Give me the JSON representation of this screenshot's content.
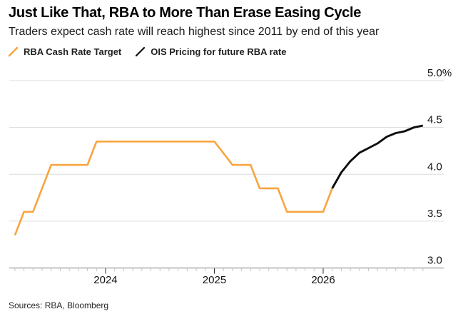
{
  "header": {
    "title": "Just Like That, RBA to More Than Erase Easing Cycle",
    "subtitle": "Traders expect cash rate will reach highest since 2011 by end of this year"
  },
  "legend": {
    "items": [
      {
        "label": "RBA Cash Rate Target",
        "color": "#F9A43F"
      },
      {
        "label": "OIS Pricing for future RBA rate",
        "color": "#0d0d0d"
      }
    ]
  },
  "footer": {
    "source": "Sources: RBA, Bloomberg"
  },
  "chart_data": {
    "type": "line",
    "title": "Just Like That, RBA to More Than Erase Easing Cycle",
    "subtitle": "Traders expect cash rate will reach highest since 2011 by end of this year",
    "grid": "horizontal",
    "legend_position": "top-left",
    "y_axis": {
      "min": 3.0,
      "max": 5.0,
      "unit": "%",
      "ticks": [
        {
          "value": 3.0,
          "label": "3.0"
        },
        {
          "value": 3.5,
          "label": "3.5"
        },
        {
          "value": 4.0,
          "label": "4.0"
        },
        {
          "value": 4.5,
          "label": "4.5"
        },
        {
          "value": 5.0,
          "label": "5.0%"
        }
      ]
    },
    "x_axis": {
      "domain": [
        2023.115,
        2027.108
      ],
      "minor_tick_months": {
        "first": {
          "year": 2023,
          "month": 3
        },
        "last": {
          "year": 2026,
          "month": 12
        }
      },
      "year_labels": [
        {
          "t": 2024,
          "label": "2024"
        },
        {
          "t": 2025,
          "label": "2025"
        },
        {
          "t": 2026,
          "label": "2026"
        }
      ]
    },
    "series": [
      {
        "name": "RBA Cash Rate Target",
        "color": "#F9A43F",
        "points": [
          [
            2023.1667,
            3.35
          ],
          [
            2023.25,
            3.6
          ],
          [
            2023.3333,
            3.6
          ],
          [
            2023.4167,
            3.85
          ],
          [
            2023.5,
            4.1
          ],
          [
            2023.8333,
            4.1
          ],
          [
            2023.9167,
            4.35
          ],
          [
            2025.0,
            4.35
          ],
          [
            2025.1667,
            4.1
          ],
          [
            2025.3333,
            4.1
          ],
          [
            2025.4167,
            3.85
          ],
          [
            2025.5833,
            3.85
          ],
          [
            2025.6667,
            3.6
          ],
          [
            2026.0,
            3.6
          ],
          [
            2026.0833,
            3.85
          ]
        ]
      },
      {
        "name": "OIS Pricing for future RBA rate",
        "color": "#0d0d0d",
        "points": [
          [
            2026.0833,
            3.85
          ],
          [
            2026.1667,
            4.02
          ],
          [
            2026.25,
            4.14
          ],
          [
            2026.3333,
            4.23
          ],
          [
            2026.4167,
            4.28
          ],
          [
            2026.5,
            4.33
          ],
          [
            2026.5833,
            4.4
          ],
          [
            2026.6667,
            4.44
          ],
          [
            2026.75,
            4.46
          ],
          [
            2026.8333,
            4.5
          ],
          [
            2026.9167,
            4.52
          ]
        ]
      }
    ]
  }
}
